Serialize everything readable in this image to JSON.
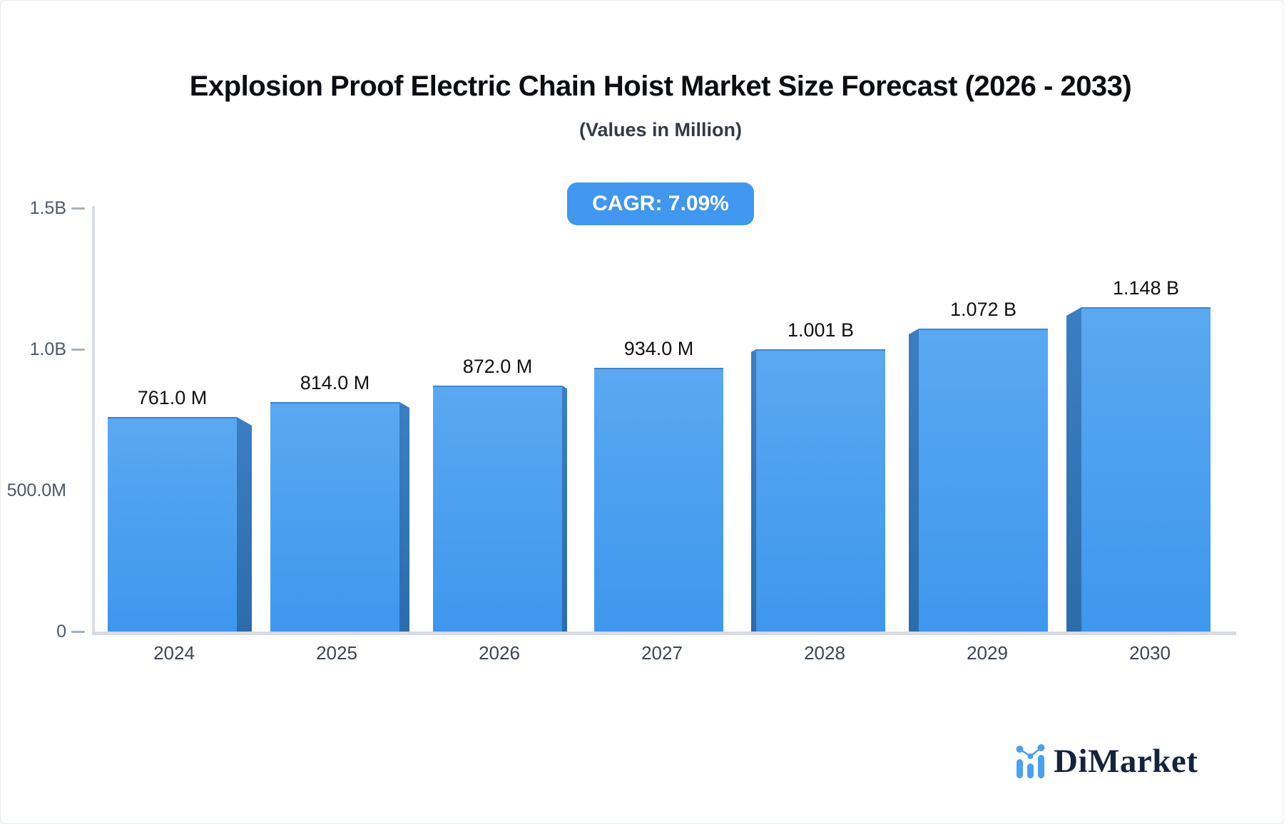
{
  "chart_data": {
    "type": "bar",
    "title": "Explosion Proof Electric Chain Hoist Market Size Forecast (2026 - 2033)",
    "subtitle": "(Values in Million)",
    "annotation": "CAGR: 7.09%",
    "categories": [
      "2024",
      "2025",
      "2026",
      "2027",
      "2028",
      "2029",
      "2030"
    ],
    "values": [
      761,
      814,
      872,
      934,
      1001,
      1072,
      1148
    ],
    "value_labels": [
      "761.0 M",
      "814.0 M",
      "872.0 M",
      "934.0 M",
      "1.001 B",
      "1.072 B",
      "1.148 B"
    ],
    "y_ticks": [
      {
        "label": "1.5B",
        "value": 1500
      },
      {
        "label": "1.0B",
        "value": 1000
      },
      {
        "label": "500.0M",
        "value": 500
      },
      {
        "label": "0",
        "value": 0
      }
    ],
    "ylim": [
      0,
      1500
    ],
    "xlabel": "",
    "ylabel": "",
    "grid": false,
    "legend": false,
    "bar_color_top": "#5aa8f1",
    "bar_color_bottom": "#3e97ee",
    "bar_side_color": "#2f72b7",
    "badge_color": "#4196ef"
  },
  "footer": {
    "logo_text": "DiMarket",
    "logo_text_color": "#16233e",
    "logo_icon_color": "#4aa0f5"
  }
}
